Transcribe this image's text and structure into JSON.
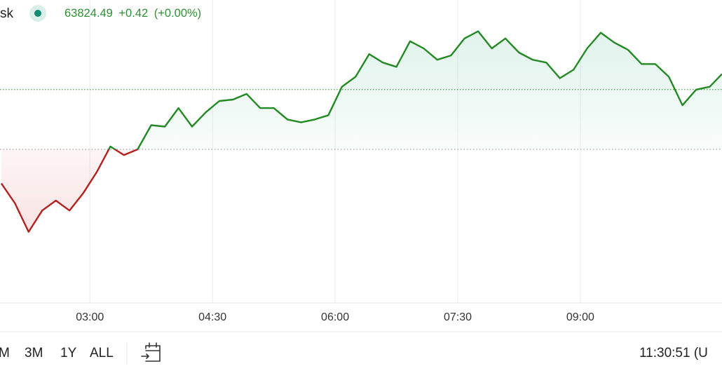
{
  "header": {
    "symbol_fragment": "sk"
  },
  "chart_data": {
    "type": "line",
    "last_price": 63824.49,
    "change": "+0.42",
    "change_pct": "(+0.00%)",
    "baseline": 63824.07,
    "x": [
      "01:55",
      "02:05",
      "02:15",
      "02:25",
      "02:35",
      "02:45",
      "02:55",
      "03:05",
      "03:15",
      "03:25",
      "03:35",
      "03:45",
      "03:55",
      "04:05",
      "04:15",
      "04:25",
      "04:35",
      "04:45",
      "04:55",
      "05:05",
      "05:15",
      "05:25",
      "05:35",
      "05:45",
      "05:55",
      "06:05",
      "06:15",
      "06:25",
      "06:35",
      "06:45",
      "06:55",
      "07:05",
      "07:15",
      "07:25",
      "07:35",
      "07:45",
      "07:55",
      "08:05",
      "08:15",
      "08:25",
      "08:35",
      "08:45",
      "08:55",
      "09:05",
      "09:15",
      "09:25",
      "09:35",
      "09:45",
      "09:55",
      "10:05",
      "10:15",
      "10:25",
      "10:35",
      "10:44"
    ],
    "values": [
      63823.83,
      63823.69,
      63823.49,
      63823.64,
      63823.71,
      63823.64,
      63823.76,
      63823.91,
      63824.09,
      63824.03,
      63824.07,
      63824.24,
      63824.23,
      63824.36,
      63824.23,
      63824.33,
      63824.41,
      63824.42,
      63824.46,
      63824.36,
      63824.36,
      63824.28,
      63824.26,
      63824.28,
      63824.31,
      63824.51,
      63824.58,
      63824.74,
      63824.68,
      63824.65,
      63824.83,
      63824.78,
      63824.7,
      63824.73,
      63824.85,
      63824.9,
      63824.78,
      63824.85,
      63824.75,
      63824.7,
      63824.68,
      63824.57,
      63824.63,
      63824.78,
      63824.89,
      63824.82,
      63824.77,
      63824.67,
      63824.67,
      63824.58,
      63824.38,
      63824.49,
      63824.51,
      63824.6
    ],
    "up_color": "#238a23",
    "down_color": "#b3201d",
    "xlim": [
      "01:54",
      "10:44"
    ],
    "ylim": [
      63822.99,
      63825.12
    ],
    "xticks": [
      "03:00",
      "04:30",
      "06:00",
      "07:30",
      "09:00"
    ],
    "grid": true
  },
  "toolbar": {
    "ranges": [
      "M",
      "3M",
      "1Y",
      "ALL"
    ],
    "time": "11:30:51 (U"
  }
}
